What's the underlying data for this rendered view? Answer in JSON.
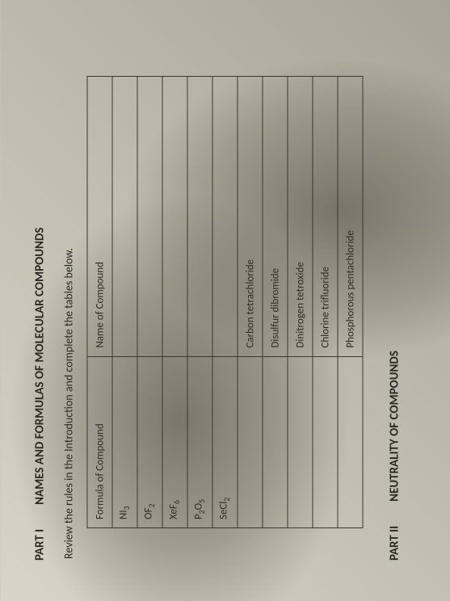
{
  "part1": {
    "label": "PART I",
    "title": "NAMES AND FORMULAS OF MOLECULAR COMPOUNDS",
    "instruction": "Review the rules in the Introduction and complete the tables below.",
    "table": {
      "headers": {
        "formula": "Formula of Compound",
        "name": "Name of Compound"
      },
      "rows": [
        {
          "formula_html": "NI<sub>3</sub>",
          "name": ""
        },
        {
          "formula_html": "OF<sub>2</sub>",
          "name": ""
        },
        {
          "formula_html": "XeF<sub>6</sub>",
          "name": ""
        },
        {
          "formula_html": "P<sub>2</sub>O<sub>5</sub>",
          "name": ""
        },
        {
          "formula_html": "SeCl<sub>2</sub>",
          "name": ""
        },
        {
          "formula_html": "",
          "name": "Carbon tetrachloride"
        },
        {
          "formula_html": "",
          "name": "Disulfur dibromide"
        },
        {
          "formula_html": "",
          "name": "Dinitrogen tetroxide"
        },
        {
          "formula_html": "",
          "name": "Chlorine trifluoride"
        },
        {
          "formula_html": "",
          "name": "Phosphorous pentachloride"
        }
      ],
      "column_widths": {
        "formula": "38%",
        "name": "62%"
      },
      "border_color": "#3a3832",
      "text_color": "#2a2822",
      "font_size": 13
    }
  },
  "part2": {
    "label": "PART II",
    "title": "NEUTRALITY OF COMPOUNDS"
  },
  "styling": {
    "background_color": "#c8c4b8",
    "font_family": "Calibri, Arial, sans-serif",
    "header_font_size": 15,
    "instruction_font_size": 14,
    "shadow_present": true
  }
}
